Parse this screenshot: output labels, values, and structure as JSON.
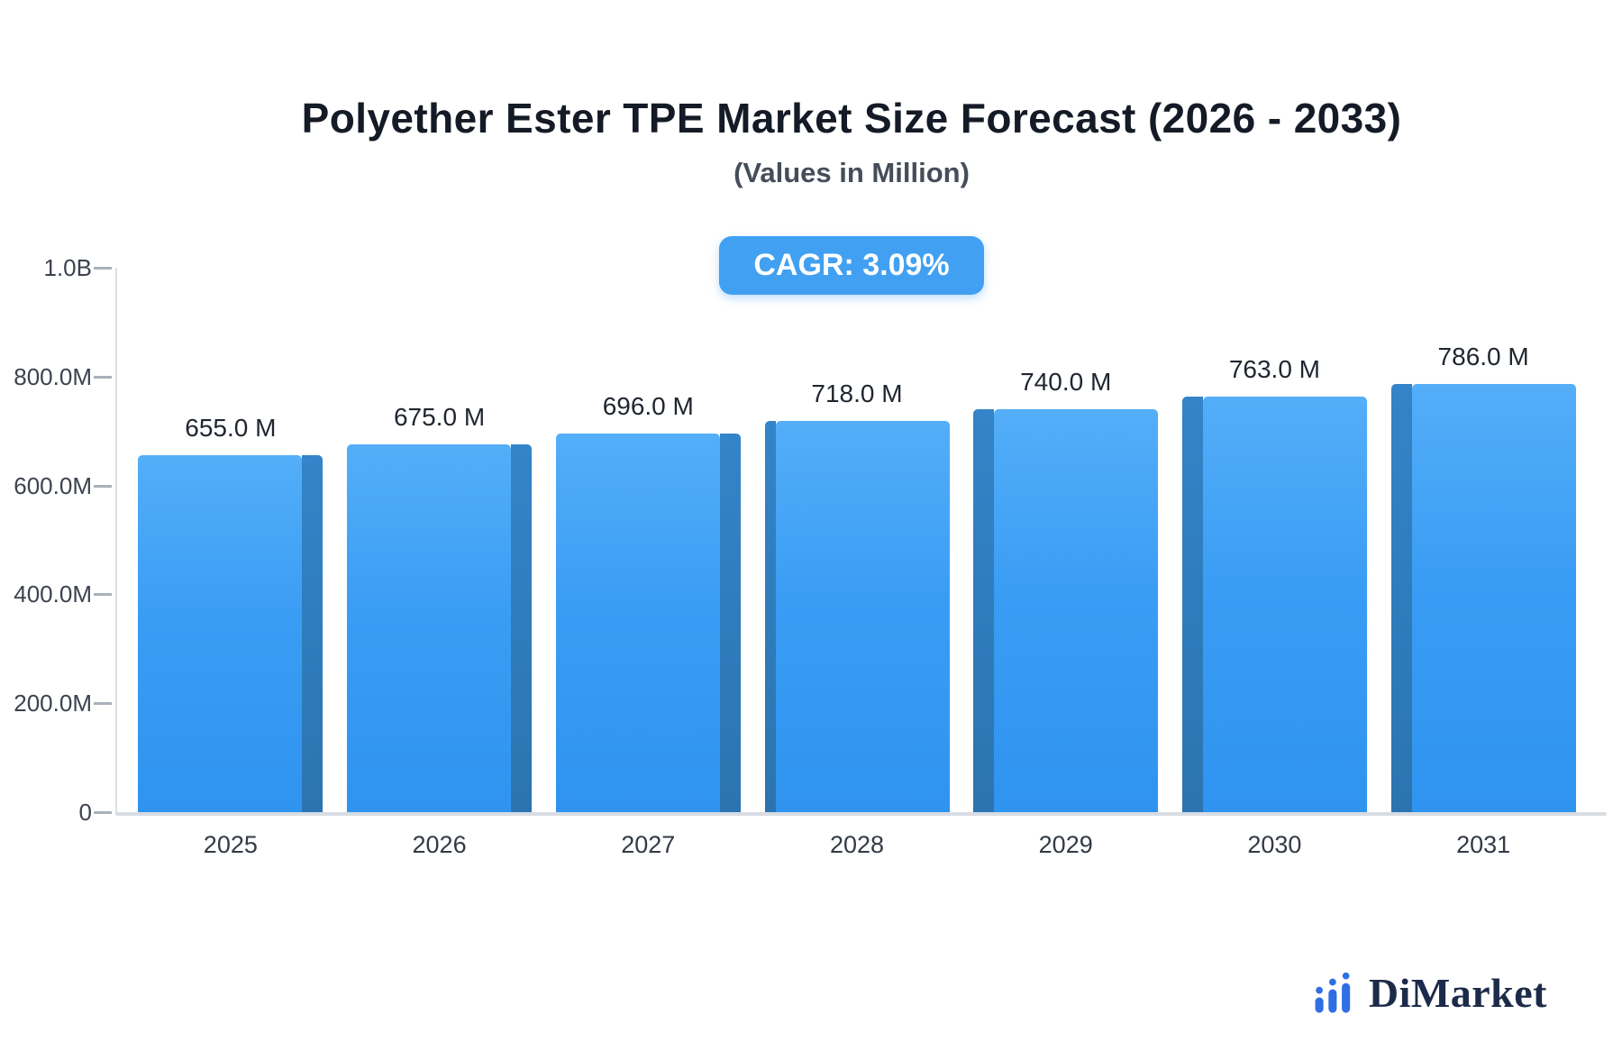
{
  "header": {
    "title": "Polyether Ester TPE Market Size Forecast (2026 - 2033)",
    "subtitle": "(Values in Million)",
    "cagr_badge": "CAGR: 3.09%"
  },
  "logo": {
    "text": "DiMarket",
    "icon": "bar-chart-icon"
  },
  "colors": {
    "bar_face": "#3D9FF4",
    "bar_side": "#2B74B0",
    "badge_bg": "#41A0F1",
    "badge_text": "#FFFFFF",
    "axis": "#D8DDE3",
    "title_text": "#141B26",
    "logo_blue": "#2F6FE4",
    "logo_navy": "#1C2B4A"
  },
  "chart_data": {
    "type": "bar",
    "title": "Polyether Ester TPE Market Size Forecast (2026 - 2033)",
    "subtitle": "(Values in Million)",
    "annotation": "CAGR: 3.09%",
    "categories": [
      "2025",
      "2026",
      "2027",
      "2028",
      "2029",
      "2030",
      "2031"
    ],
    "values": [
      655.0,
      675.0,
      696.0,
      718.0,
      740.0,
      763.0,
      786.0
    ],
    "value_labels": [
      "655.0 M",
      "675.0 M",
      "696.0 M",
      "718.0 M",
      "740.0 M",
      "763.0 M",
      "786.0 M"
    ],
    "y_ticks": [
      {
        "value": 1000,
        "label": "1.0B"
      },
      {
        "value": 800,
        "label": "800.0M"
      },
      {
        "value": 600,
        "label": "600.0M"
      },
      {
        "value": 400,
        "label": "400.0M"
      },
      {
        "value": 200,
        "label": "200.0M"
      },
      {
        "value": 0,
        "label": "0"
      }
    ],
    "ylim": [
      0,
      1000
    ],
    "xlabel": "",
    "ylabel": "",
    "grid": false,
    "legend": false
  }
}
